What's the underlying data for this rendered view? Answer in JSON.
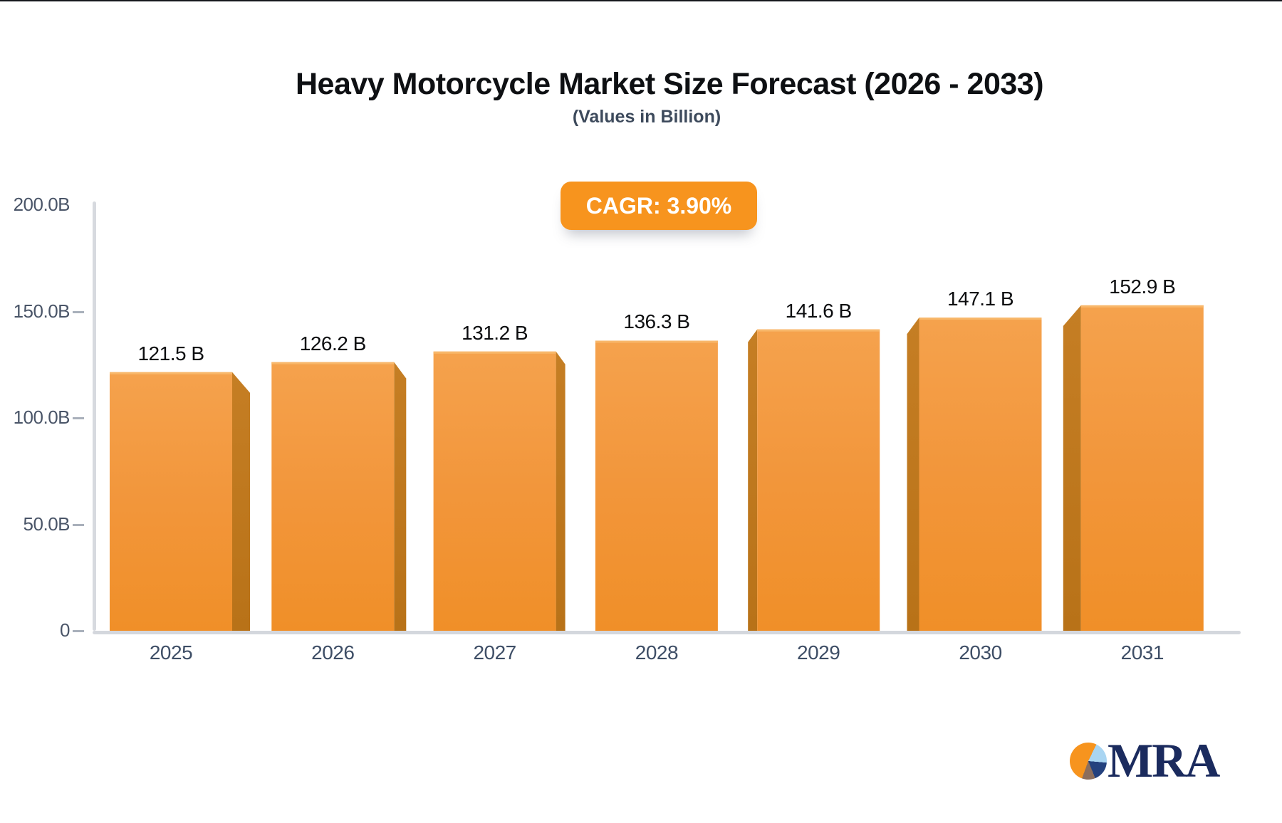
{
  "page": {
    "badge_label": "CAGR: 3.90%"
  },
  "chart_data": {
    "type": "bar",
    "title": "Heavy Motorcycle Market Size Forecast (2026 - 2033)",
    "subtitle": "(Values in Billion)",
    "cagr_label": "CAGR: 3.90%",
    "categories": [
      "2025",
      "2026",
      "2027",
      "2028",
      "2029",
      "2030",
      "2031"
    ],
    "values": [
      121.5,
      126.2,
      131.2,
      136.3,
      141.6,
      147.1,
      152.9
    ],
    "value_suffix": " B",
    "ylim": [
      0,
      200
    ],
    "yticks": [
      {
        "value": 200,
        "label": "200.0B",
        "tick": false
      },
      {
        "value": 150,
        "label": "150.0B",
        "tick": true
      },
      {
        "value": 100,
        "label": "100.0B",
        "tick": true
      },
      {
        "value": 50,
        "label": "50.0B",
        "tick": true
      },
      {
        "value": 0,
        "label": "0",
        "tick": true
      }
    ],
    "grid": false,
    "legend": false
  },
  "logo": {
    "text": "MRA"
  },
  "colors": {
    "badge": "#f7941e",
    "bar_face_top": "#f5a24d",
    "bar_face_mid": "#f2963b",
    "bar_face_bottom": "#f08f28",
    "bar_side_dark": "#b87218",
    "bar_side_light": "#c57e24",
    "bar_top_highlight": "#f8b76a",
    "axis": "#d7dadf",
    "tick": "#a9b0bb",
    "y_label": "#4a5568",
    "x_label": "#3e4e66",
    "value_label": "#0c0d0f",
    "title": "#0e1013",
    "subtitle": "#3d4a5c",
    "logo_navy": "#1b2b5e"
  }
}
